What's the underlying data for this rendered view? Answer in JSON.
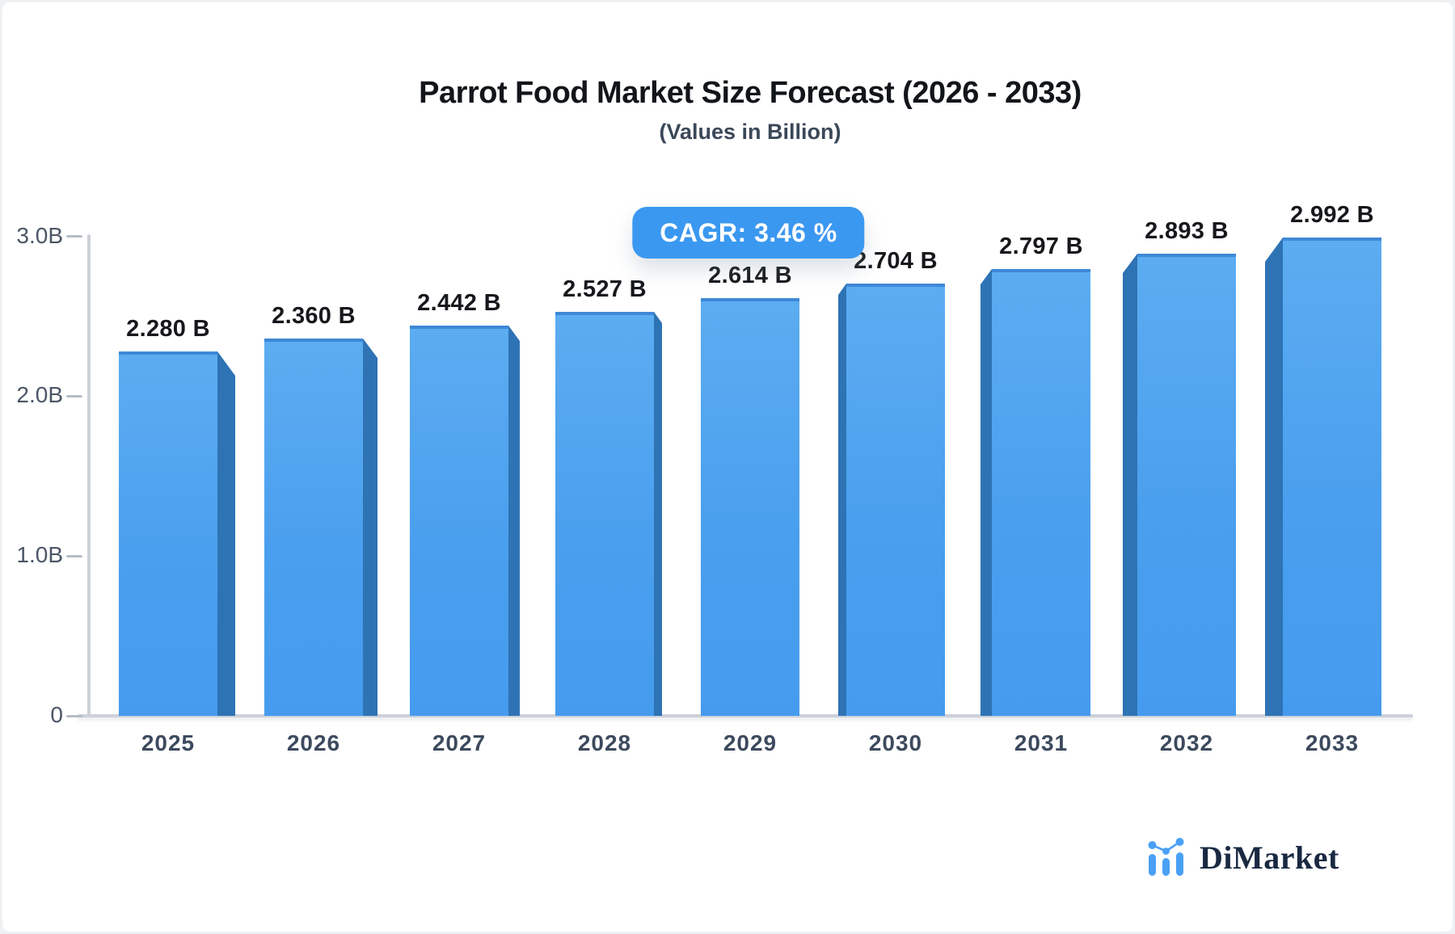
{
  "brand": {
    "name": "DiMarket"
  },
  "chart_data": {
    "type": "bar",
    "title": "Parrot Food Market Size Forecast (2026 - 2033)",
    "subtitle": "(Values in Billion)",
    "cagr_badge": "CAGR: 3.46 %",
    "categories": [
      "2025",
      "2026",
      "2027",
      "2028",
      "2029",
      "2030",
      "2031",
      "2032",
      "2033"
    ],
    "values": [
      2.28,
      2.36,
      2.442,
      2.527,
      2.614,
      2.704,
      2.797,
      2.893,
      2.992
    ],
    "value_labels": [
      "2.280 B",
      "2.360 B",
      "2.442 B",
      "2.527 B",
      "2.614 B",
      "2.704 B",
      "2.797 B",
      "2.893 B",
      "2.992 B"
    ],
    "unit": "Billion",
    "ylim": [
      0,
      3.0
    ],
    "yticks": [
      {
        "value": 0,
        "label": "0"
      },
      {
        "value": 1,
        "label": "1.0B"
      },
      {
        "value": 2,
        "label": "2.0B"
      },
      {
        "value": 3,
        "label": "3.0B"
      }
    ],
    "grid": false,
    "legend": false,
    "style_3d": true,
    "colors": {
      "bar_face_top": "#5cacf1",
      "bar_face_bottom": "#459bee",
      "bar_side_face": "#2e73b4",
      "bar_top_edge": "#3e88d8",
      "badge_bg": "#3b98f0",
      "badge_text": "#ffffff",
      "axis_line": "#ccd1d9",
      "tick_dash": "#b6bdc7",
      "title_text": "#121519",
      "subtitle_text": "#3b4859",
      "value_label_text": "#16181c",
      "year_label_text": "#3d4a5e",
      "ytick_text": "#4b5666",
      "logo_blue": "#4aa0f5",
      "logo_text": "#1a2942"
    }
  }
}
